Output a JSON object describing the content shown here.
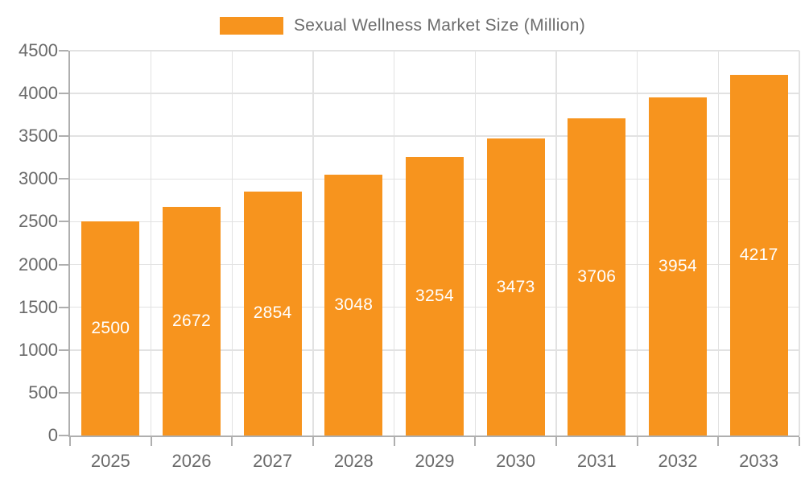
{
  "chart_data": {
    "type": "bar",
    "title": "Sexual Wellness Market Size (Million)",
    "categories": [
      "2025",
      "2026",
      "2027",
      "2028",
      "2029",
      "2030",
      "2031",
      "2032",
      "2033"
    ],
    "values": [
      2500,
      2672,
      2854,
      3048,
      3254,
      3473,
      3706,
      3954,
      4217
    ],
    "series": [
      {
        "name": "Sexual Wellness Market Size (Million)",
        "values": [
          2500,
          2672,
          2854,
          3048,
          3254,
          3473,
          3706,
          3954,
          4217
        ]
      }
    ],
    "xlabel": "",
    "ylabel": "",
    "ylim": [
      0,
      4500
    ],
    "yticks": [
      0,
      500,
      1000,
      1500,
      2000,
      2500,
      3000,
      3500,
      4000,
      4500
    ],
    "grid": true,
    "legend_position": "top-center",
    "bar_labels_inside": true,
    "colors": {
      "bar": "#F7941E",
      "grid": "#E2E2E2",
      "axis": "#AFAFAF",
      "tick_label": "#6A6A6A",
      "legend_text": "#6B6B6B",
      "bar_value_label": "#FFFFFF",
      "background": "#FFFFFF"
    }
  }
}
